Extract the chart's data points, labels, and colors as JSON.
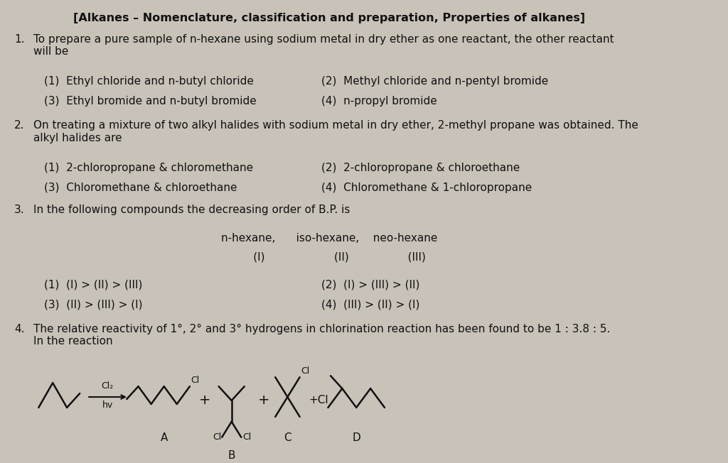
{
  "background_color": "#c8c2b8",
  "title": "[Alkanes – Nomenclature, classification and preparation, Properties of alkanes]",
  "title_fontsize": 11.5,
  "q1_num": "1.",
  "q1_text": "To prepare a pure sample of n-hexane using sodium metal in dry ether as one reactant, the other reactant\nwill be",
  "q1_opt1": "(1)  Ethyl chloride and n-butyl chloride",
  "q1_opt2": "(2)  Methyl chloride and n-pentyl bromide",
  "q1_opt3": "(3)  Ethyl bromide and n-butyl bromide",
  "q1_opt4": "(4)  n-propyl bromide",
  "q2_num": "2.",
  "q2_text": "On treating a mixture of two alkyl halides with sodium metal in dry ether, 2-methyl propane was obtained. The\nalkyl halides are",
  "q2_opt1": "(1)  2-chloropropane & chloromethane",
  "q2_opt2": "(2)  2-chloropropane & chloroethane",
  "q2_opt3": "(3)  Chloromethane & chloroethane",
  "q2_opt4": "(4)  Chloromethane & 1-chloropropane",
  "q3_num": "3.",
  "q3_text": "In the following compounds the decreasing order of B.P. is",
  "q3_opt1": "(1)  (I) > (II) > (III)",
  "q3_opt2": "(2)  (I) > (III) > (II)",
  "q3_opt3": "(3)  (II) > (III) > (I)",
  "q3_opt4": "(4)  (III) > (II) > (I)",
  "q4_num": "4.",
  "q4_text": "The relative reactivity of 1°, 2° and 3° hydrogens in chlorination reaction has been found to be 1 : 3.8 : 5.\nIn the reaction",
  "text_color": "#111111",
  "lw": 1.8
}
